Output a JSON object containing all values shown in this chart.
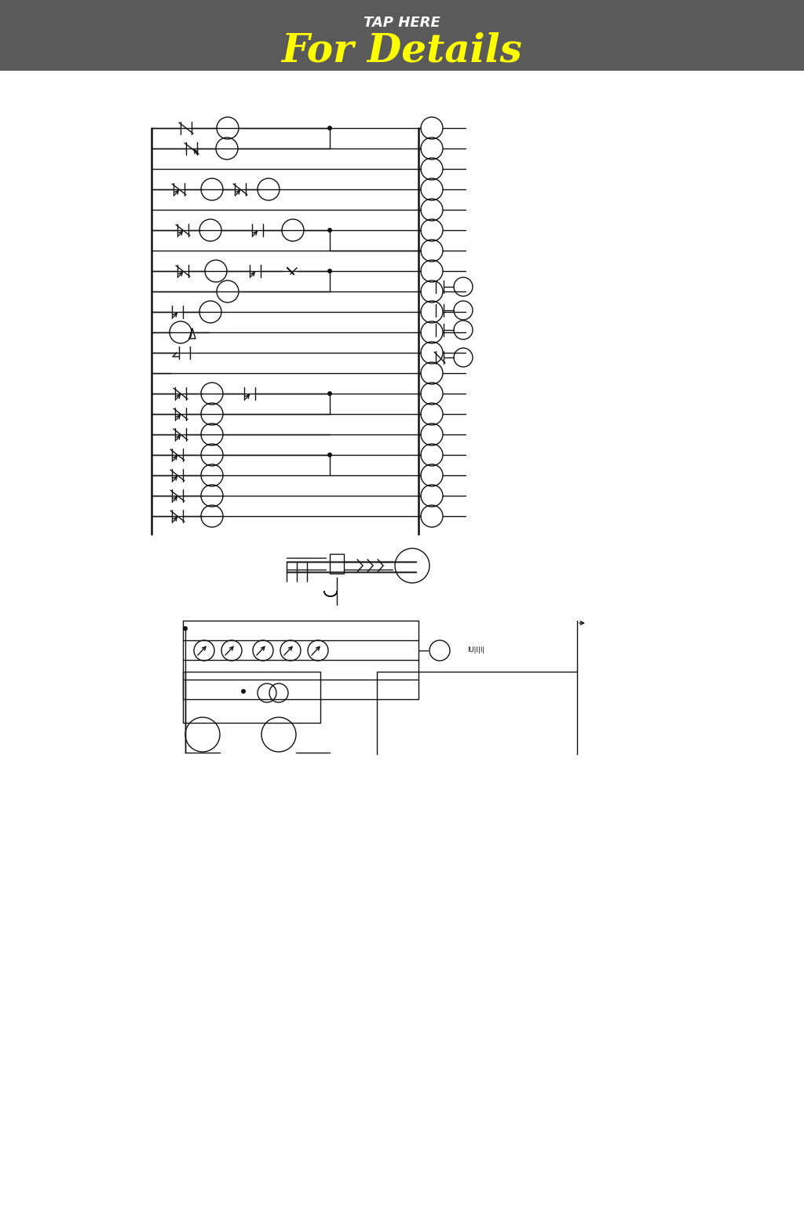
{
  "header_bg": "#5a5a5a",
  "header_text1": "TAP HERE",
  "header_text2": "For Details",
  "header_text1_color": "#ffffff",
  "header_text2_color": "#ffff00",
  "bg_color": "#ffffff",
  "lc": "#111111",
  "lw": 1.0
}
